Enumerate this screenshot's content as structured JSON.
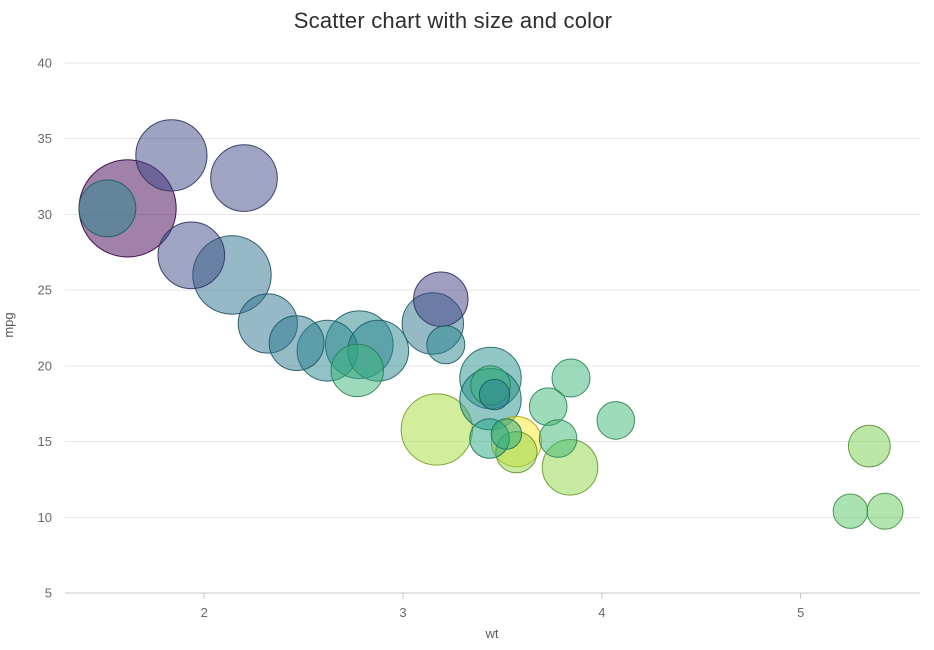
{
  "chart_data": {
    "type": "scatter",
    "title": "Scatter chart with size and color",
    "xlabel": "wt",
    "ylabel": "mpg",
    "xlim": [
      1.3,
      5.6
    ],
    "ylim": [
      5,
      40
    ],
    "x_ticks": [
      2,
      3,
      4,
      5
    ],
    "y_ticks": [
      5,
      10,
      15,
      20,
      25,
      30,
      35,
      40
    ],
    "grid": "horizontal",
    "legend": "none",
    "x_field": "wt",
    "y_field": "mpg",
    "size_field": "drat",
    "color_field": "hp",
    "fill_opacity": 0.5,
    "color_scale": {
      "name": "viridis",
      "transform": "sqrt",
      "domain": [
        52,
        335
      ],
      "stops": [
        "#440154",
        "#46327e",
        "#365c8d",
        "#277f8e",
        "#1fa187",
        "#4ac16d",
        "#a0da39",
        "#fde725"
      ]
    },
    "points": [
      {
        "wt": 2.62,
        "mpg": 21.0,
        "hp": 110,
        "drat": 3.9
      },
      {
        "wt": 2.875,
        "mpg": 21.0,
        "hp": 110,
        "drat": 3.9
      },
      {
        "wt": 2.32,
        "mpg": 22.8,
        "hp": 93,
        "drat": 3.85
      },
      {
        "wt": 3.215,
        "mpg": 21.4,
        "hp": 110,
        "drat": 3.08
      },
      {
        "wt": 3.44,
        "mpg": 18.7,
        "hp": 175,
        "drat": 3.15
      },
      {
        "wt": 3.46,
        "mpg": 18.1,
        "hp": 105,
        "drat": 2.76
      },
      {
        "wt": 3.57,
        "mpg": 14.3,
        "hp": 245,
        "drat": 3.21
      },
      {
        "wt": 3.19,
        "mpg": 24.4,
        "hp": 62,
        "drat": 3.69
      },
      {
        "wt": 3.15,
        "mpg": 22.8,
        "hp": 95,
        "drat": 3.92
      },
      {
        "wt": 3.44,
        "mpg": 19.2,
        "hp": 123,
        "drat": 3.92
      },
      {
        "wt": 3.44,
        "mpg": 17.8,
        "hp": 123,
        "drat": 3.92
      },
      {
        "wt": 4.07,
        "mpg": 16.4,
        "hp": 180,
        "drat": 3.07
      },
      {
        "wt": 3.73,
        "mpg": 17.3,
        "hp": 180,
        "drat": 3.07
      },
      {
        "wt": 3.78,
        "mpg": 15.2,
        "hp": 180,
        "drat": 3.07
      },
      {
        "wt": 5.25,
        "mpg": 10.4,
        "hp": 205,
        "drat": 2.93
      },
      {
        "wt": 5.424,
        "mpg": 10.4,
        "hp": 215,
        "drat": 3.0
      },
      {
        "wt": 5.345,
        "mpg": 14.7,
        "hp": 230,
        "drat": 3.23
      },
      {
        "wt": 2.2,
        "mpg": 32.4,
        "hp": 66,
        "drat": 4.08
      },
      {
        "wt": 1.615,
        "mpg": 30.4,
        "hp": 52,
        "drat": 4.93
      },
      {
        "wt": 1.835,
        "mpg": 33.9,
        "hp": 65,
        "drat": 4.22
      },
      {
        "wt": 2.465,
        "mpg": 21.5,
        "hp": 97,
        "drat": 3.7
      },
      {
        "wt": 3.52,
        "mpg": 15.5,
        "hp": 150,
        "drat": 2.76
      },
      {
        "wt": 3.435,
        "mpg": 15.2,
        "hp": 150,
        "drat": 3.15
      },
      {
        "wt": 3.84,
        "mpg": 13.3,
        "hp": 245,
        "drat": 3.73
      },
      {
        "wt": 3.845,
        "mpg": 19.2,
        "hp": 175,
        "drat": 3.08
      },
      {
        "wt": 1.935,
        "mpg": 27.3,
        "hp": 66,
        "drat": 4.08
      },
      {
        "wt": 2.14,
        "mpg": 26.0,
        "hp": 91,
        "drat": 4.43
      },
      {
        "wt": 1.513,
        "mpg": 30.4,
        "hp": 113,
        "drat": 3.77
      },
      {
        "wt": 3.17,
        "mpg": 15.8,
        "hp": 264,
        "drat": 4.22
      },
      {
        "wt": 2.77,
        "mpg": 19.7,
        "hp": 175,
        "drat": 3.62
      },
      {
        "wt": 3.57,
        "mpg": 15.0,
        "hp": 335,
        "drat": 3.54
      },
      {
        "wt": 2.78,
        "mpg": 21.4,
        "hp": 109,
        "drat": 4.11
      }
    ]
  }
}
